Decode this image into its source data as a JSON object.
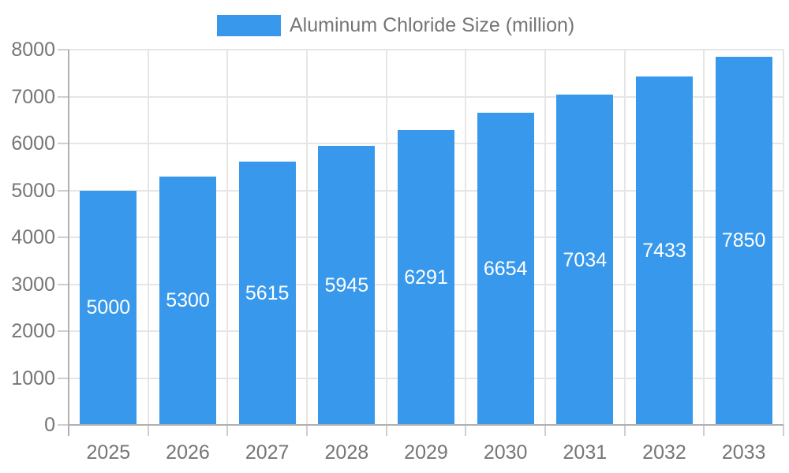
{
  "chart_data": {
    "type": "bar",
    "title": "Aluminum Chloride Size (million)",
    "legend": {
      "label": "Aluminum Chloride Size (million)",
      "position": "top"
    },
    "categories": [
      "2025",
      "2026",
      "2027",
      "2028",
      "2029",
      "2030",
      "2031",
      "2032",
      "2033"
    ],
    "values": [
      5000,
      5300,
      5615,
      5945,
      6291,
      6654,
      7034,
      7433,
      7850
    ],
    "xlabel": "",
    "ylabel": "",
    "ylim": [
      0,
      8000
    ],
    "yticks": [
      0,
      1000,
      2000,
      3000,
      4000,
      5000,
      6000,
      7000,
      8000
    ],
    "grid": true,
    "bar_labels_inside": true,
    "colors": {
      "bar": "#3899EC",
      "grid": "#E6E6E6",
      "tick": "#CFCFCF",
      "axis": "#B0B0B0",
      "axis_text": "#757575",
      "bar_label_text": "#FFFFFF",
      "background": "#FFFFFF"
    }
  }
}
